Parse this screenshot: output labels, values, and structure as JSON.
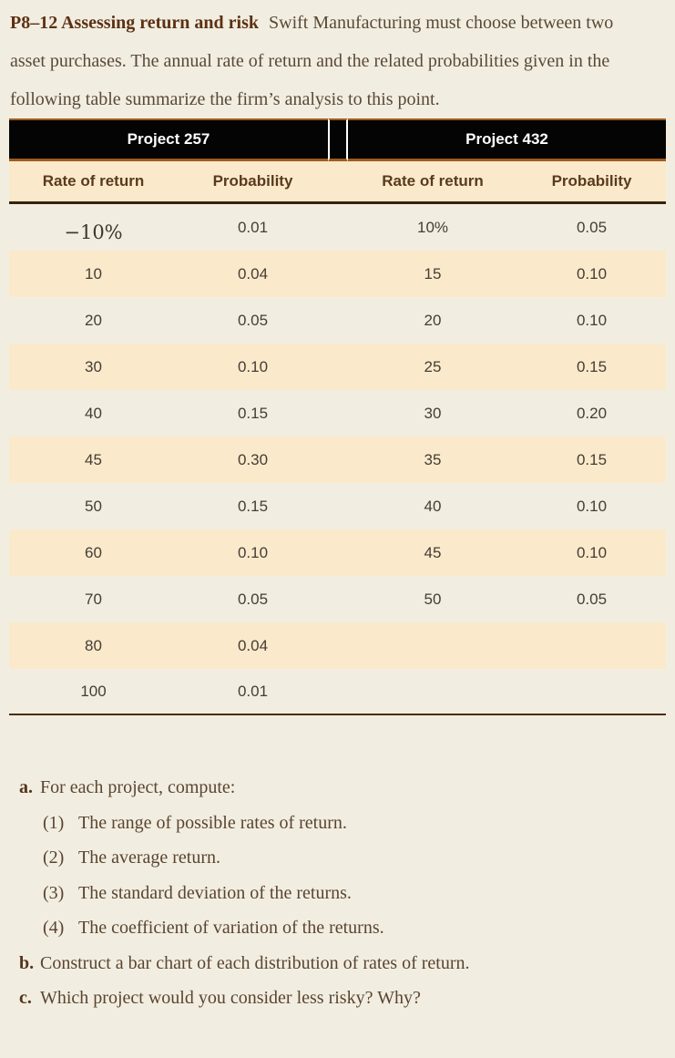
{
  "theme": {
    "page_bg": "#f1eee1",
    "row_highlight": "#faeacb",
    "header_bar_bg": "#040404",
    "header_bar_text": "#ffffff",
    "header_rule_orange": "#a05b1d",
    "dark_rule": "#35230f",
    "title_color": "#5e3014",
    "body_text_color": "#5b4836"
  },
  "intro": {
    "title": "P8–12 Assessing return and risk",
    "body": "Swift Manufacturing must choose between two asset purchases. The annual rate of return and the related probabilities given in the following table summarize the firm’s analysis to this point."
  },
  "table": {
    "project_headers": [
      "Project 257",
      "Project 432"
    ],
    "column_headers": [
      "Rate of return",
      "Probability",
      "Rate of return",
      "Probability"
    ],
    "rows": [
      {
        "p257_rate": "−10%",
        "p257_prob": "0.01",
        "p432_rate": "10%",
        "p432_prob": "0.05"
      },
      {
        "p257_rate": "10",
        "p257_prob": "0.04",
        "p432_rate": "15",
        "p432_prob": "0.10"
      },
      {
        "p257_rate": "20",
        "p257_prob": "0.05",
        "p432_rate": "20",
        "p432_prob": "0.10"
      },
      {
        "p257_rate": "30",
        "p257_prob": "0.10",
        "p432_rate": "25",
        "p432_prob": "0.15"
      },
      {
        "p257_rate": "40",
        "p257_prob": "0.15",
        "p432_rate": "30",
        "p432_prob": "0.20"
      },
      {
        "p257_rate": "45",
        "p257_prob": "0.30",
        "p432_rate": "35",
        "p432_prob": "0.15"
      },
      {
        "p257_rate": "50",
        "p257_prob": "0.15",
        "p432_rate": "40",
        "p432_prob": "0.10"
      },
      {
        "p257_rate": "60",
        "p257_prob": "0.10",
        "p432_rate": "45",
        "p432_prob": "0.10"
      },
      {
        "p257_rate": "70",
        "p257_prob": "0.05",
        "p432_rate": "50",
        "p432_prob": "0.05"
      },
      {
        "p257_rate": "80",
        "p257_prob": "0.04",
        "p432_rate": "",
        "p432_prob": ""
      },
      {
        "p257_rate": "100",
        "p257_prob": "0.01",
        "p432_rate": "",
        "p432_prob": ""
      }
    ]
  },
  "questions": {
    "a": {
      "label": "a.",
      "text": "For each project, compute:"
    },
    "a_subitems": [
      {
        "num": "(1)",
        "text": "The range of possible rates of return."
      },
      {
        "num": "(2)",
        "text": "The average return."
      },
      {
        "num": "(3)",
        "text": "The standard deviation of the returns."
      },
      {
        "num": "(4)",
        "text": "The coefficient of variation of the returns."
      }
    ],
    "b": {
      "label": "b.",
      "text": "Construct a bar chart of each distribution of rates of return."
    },
    "c": {
      "label": "c.",
      "text": "Which project would you consider less risky? Why?"
    }
  }
}
